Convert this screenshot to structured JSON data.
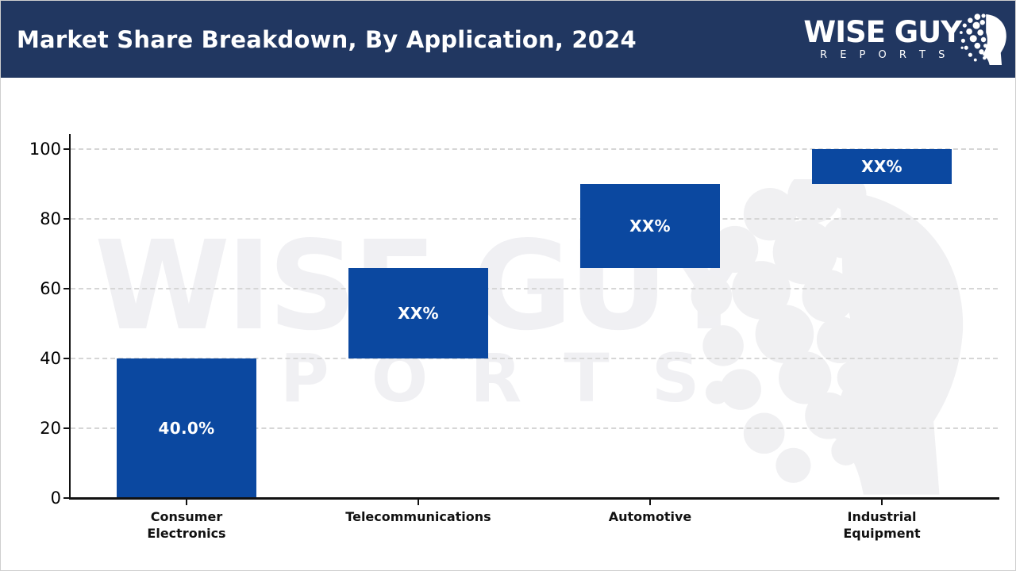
{
  "header": {
    "bg_color": "#213761",
    "title": "Market Share Breakdown, By Application, 2024",
    "logo": {
      "wordmark": "WISE GUY",
      "subtext": "R E P O R T S"
    }
  },
  "watermark": {
    "wordmark": "WISE GUY",
    "subtext": "P O R T S"
  },
  "chart_data": {
    "type": "bar",
    "variant": "waterfall-floating-bars",
    "title": "Market Share Breakdown, By Application, 2024",
    "categories": [
      "Consumer Electronics",
      "Telecommunications",
      "Automotive",
      "Industrial Equipment"
    ],
    "category_label_lines": [
      [
        "Consumer",
        "Electronics"
      ],
      [
        "Telecommunications"
      ],
      [
        "Automotive"
      ],
      [
        "Industrial",
        "Equipment"
      ]
    ],
    "bars": [
      {
        "category": "Consumer Electronics",
        "start": 0,
        "end": 40,
        "value": 40,
        "label": "40.0%"
      },
      {
        "category": "Telecommunications",
        "start": 40,
        "end": 66,
        "value": 26,
        "label": "XX%"
      },
      {
        "category": "Automotive",
        "start": 66,
        "end": 90,
        "value": 24,
        "label": "XX%"
      },
      {
        "category": "Industrial Equipment",
        "start": 90,
        "end": 100,
        "value": 10,
        "label": "XX%"
      }
    ],
    "ylim": [
      0,
      100
    ],
    "yticks": [
      0,
      20,
      40,
      60,
      80,
      100
    ],
    "grid": "horizontal-dashed",
    "legend": "none",
    "bar_color": "#0b48a0",
    "bar_label_color": "#ffffff",
    "axis_color": "#111111",
    "grid_color": "#d6d6d6"
  }
}
